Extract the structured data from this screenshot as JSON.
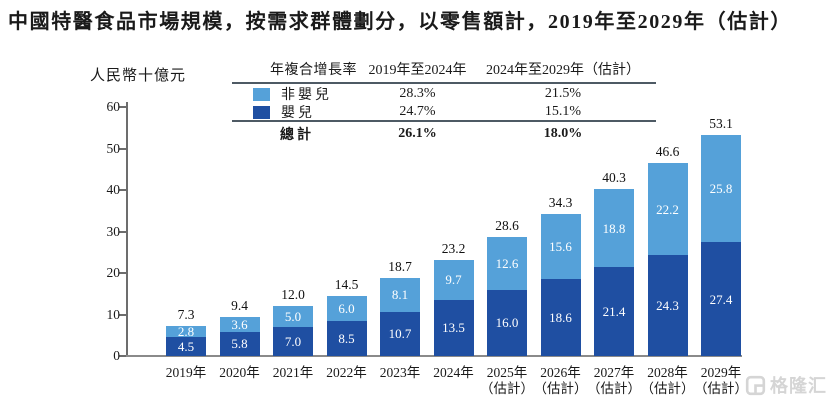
{
  "title": "中國特醫食品市場規模，按需求群體劃分，以零售額計，2019年至2029年（估計）",
  "cagr_table": {
    "header": {
      "metric": "年複合增長率",
      "period1": "2019年至2024年",
      "period2": "2024年至2029年（估計）"
    },
    "rows": [
      {
        "label": "非嬰兒",
        "swatch_color": "#55A1D9",
        "period1": "28.3%",
        "period2": "21.5%"
      },
      {
        "label": "嬰兒",
        "swatch_color": "#1F4FA2",
        "period1": "24.7%",
        "period2": "15.1%"
      }
    ],
    "total": {
      "label": "總計",
      "period1": "26.1%",
      "period2": "18.0%"
    }
  },
  "chart_data": {
    "type": "bar",
    "stacked": true,
    "title": "中國特醫食品市場規模，按需求群體劃分，以零售額計，2019年至2029年（估計）",
    "ylabel": "人民幣十億元",
    "ylim": [
      0,
      60
    ],
    "yticks": [
      0,
      10,
      20,
      30,
      40,
      50,
      60
    ],
    "grid": false,
    "legend_position": "table-top",
    "categories": [
      "2019年",
      "2020年",
      "2021年",
      "2022年",
      "2023年",
      "2024年",
      "2025年",
      "2026年",
      "2027年",
      "2028年",
      "2029年"
    ],
    "category_notes": [
      "",
      "",
      "",
      "",
      "",
      "",
      "（估計）",
      "（估計）",
      "（估計）",
      "（估計）",
      "（估計）"
    ],
    "series": [
      {
        "name": "非嬰兒",
        "color": "#55A1D9",
        "stack_position": "top",
        "values": [
          2.8,
          3.6,
          5.0,
          6.0,
          8.1,
          9.7,
          12.6,
          15.6,
          18.8,
          22.2,
          25.8
        ]
      },
      {
        "name": "嬰兒",
        "color": "#1F4FA2",
        "stack_position": "bottom",
        "values": [
          4.5,
          5.8,
          7.0,
          8.5,
          10.7,
          13.5,
          16.0,
          18.6,
          21.4,
          24.3,
          27.4
        ]
      }
    ],
    "totals": [
      7.3,
      9.4,
      12.0,
      14.5,
      18.7,
      23.2,
      28.6,
      34.3,
      40.3,
      46.6,
      53.1
    ]
  },
  "watermark": {
    "text": "格隆汇"
  }
}
